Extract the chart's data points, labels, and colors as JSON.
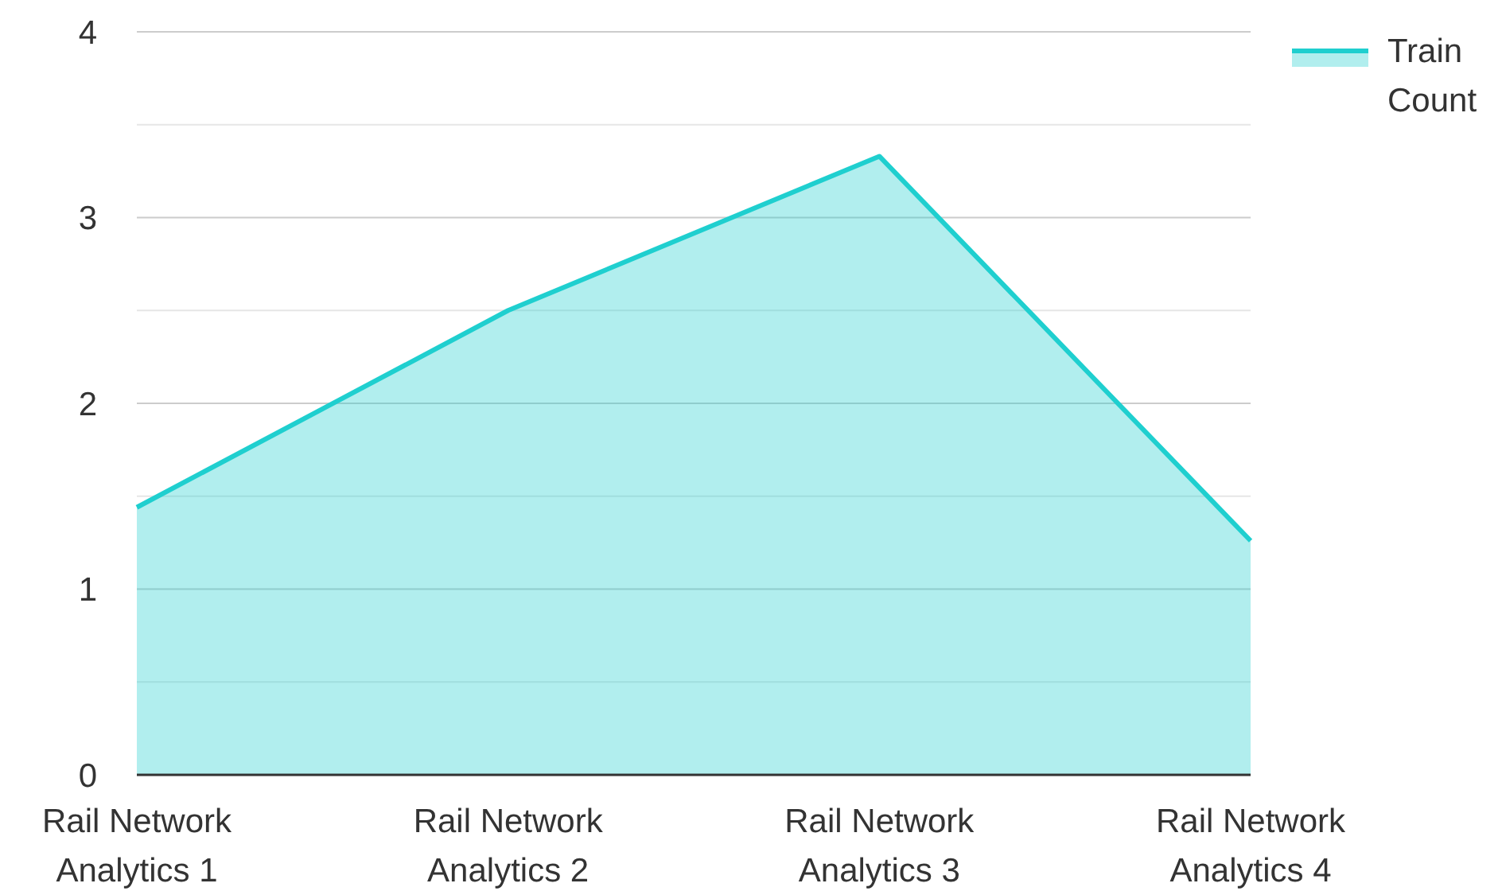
{
  "chart_data": {
    "type": "area",
    "categories": [
      "Rail Network Analytics 1",
      "Rail Network Analytics 2",
      "Rail Network Analytics 3",
      "Rail Network Analytics 4"
    ],
    "series": [
      {
        "name": "Train Count",
        "color": "#1fcfcf",
        "values": [
          1.44,
          2.5,
          3.33,
          1.26
        ]
      }
    ],
    "ylim": [
      0,
      4
    ],
    "yticks": [
      0,
      {
        "value": 0.5,
        "label": null
      },
      1,
      {
        "value": 1.5,
        "label": null
      },
      2,
      {
        "value": 2.5,
        "label": null
      },
      3,
      {
        "value": 3.5,
        "label": null
      },
      4
    ],
    "grid": "y",
    "legend": "top right"
  }
}
